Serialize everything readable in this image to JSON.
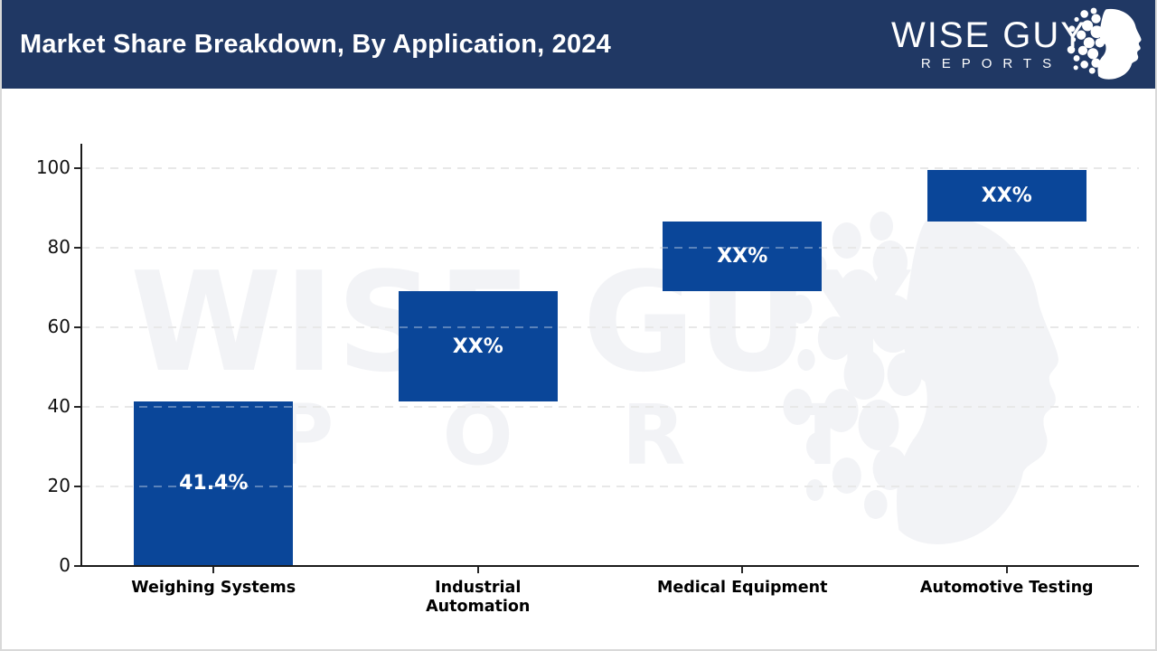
{
  "header": {
    "title": "Market Share Breakdown, By Application, 2024",
    "logo": {
      "line1": "WISE GUY",
      "line2": "REPORTS"
    }
  },
  "watermark": {
    "line1": "WISE GUY",
    "line2": "P O R T S"
  },
  "colors": {
    "header_bg": "#203864",
    "bar": "#0a4699",
    "bar_label": "#ffffff",
    "grid": "#dcdcdc",
    "axis": "#1a1a1a",
    "watermark": "#f2f3f6"
  },
  "chart_data": {
    "type": "bar",
    "subtype": "waterfall",
    "title": "Market Share Breakdown, By Application, 2024",
    "xlabel": "",
    "ylabel": "",
    "ylim": [
      0,
      106
    ],
    "yticks": [
      0,
      20,
      40,
      60,
      80,
      100
    ],
    "grid": true,
    "grid_style": "dashed",
    "legend": "none",
    "categories": [
      "Weighing Systems",
      "Industrial Automation",
      "Medical Equipment",
      "Automotive Testing"
    ],
    "segments": [
      {
        "category": "Weighing Systems",
        "category_lines": [
          "Weighing Systems"
        ],
        "start": 0,
        "end": 41.4,
        "label": "41.4%"
      },
      {
        "category": "Industrial Automation",
        "category_lines": [
          "Industrial",
          "Automation"
        ],
        "start": 41.4,
        "end": 69.0,
        "label": "XX%"
      },
      {
        "category": "Medical Equipment",
        "category_lines": [
          "Medical Equipment"
        ],
        "start": 69.0,
        "end": 86.5,
        "label": "XX%"
      },
      {
        "category": "Automotive Testing",
        "category_lines": [
          "Automotive Testing"
        ],
        "start": 86.5,
        "end": 99.5,
        "label": "XX%"
      }
    ]
  }
}
